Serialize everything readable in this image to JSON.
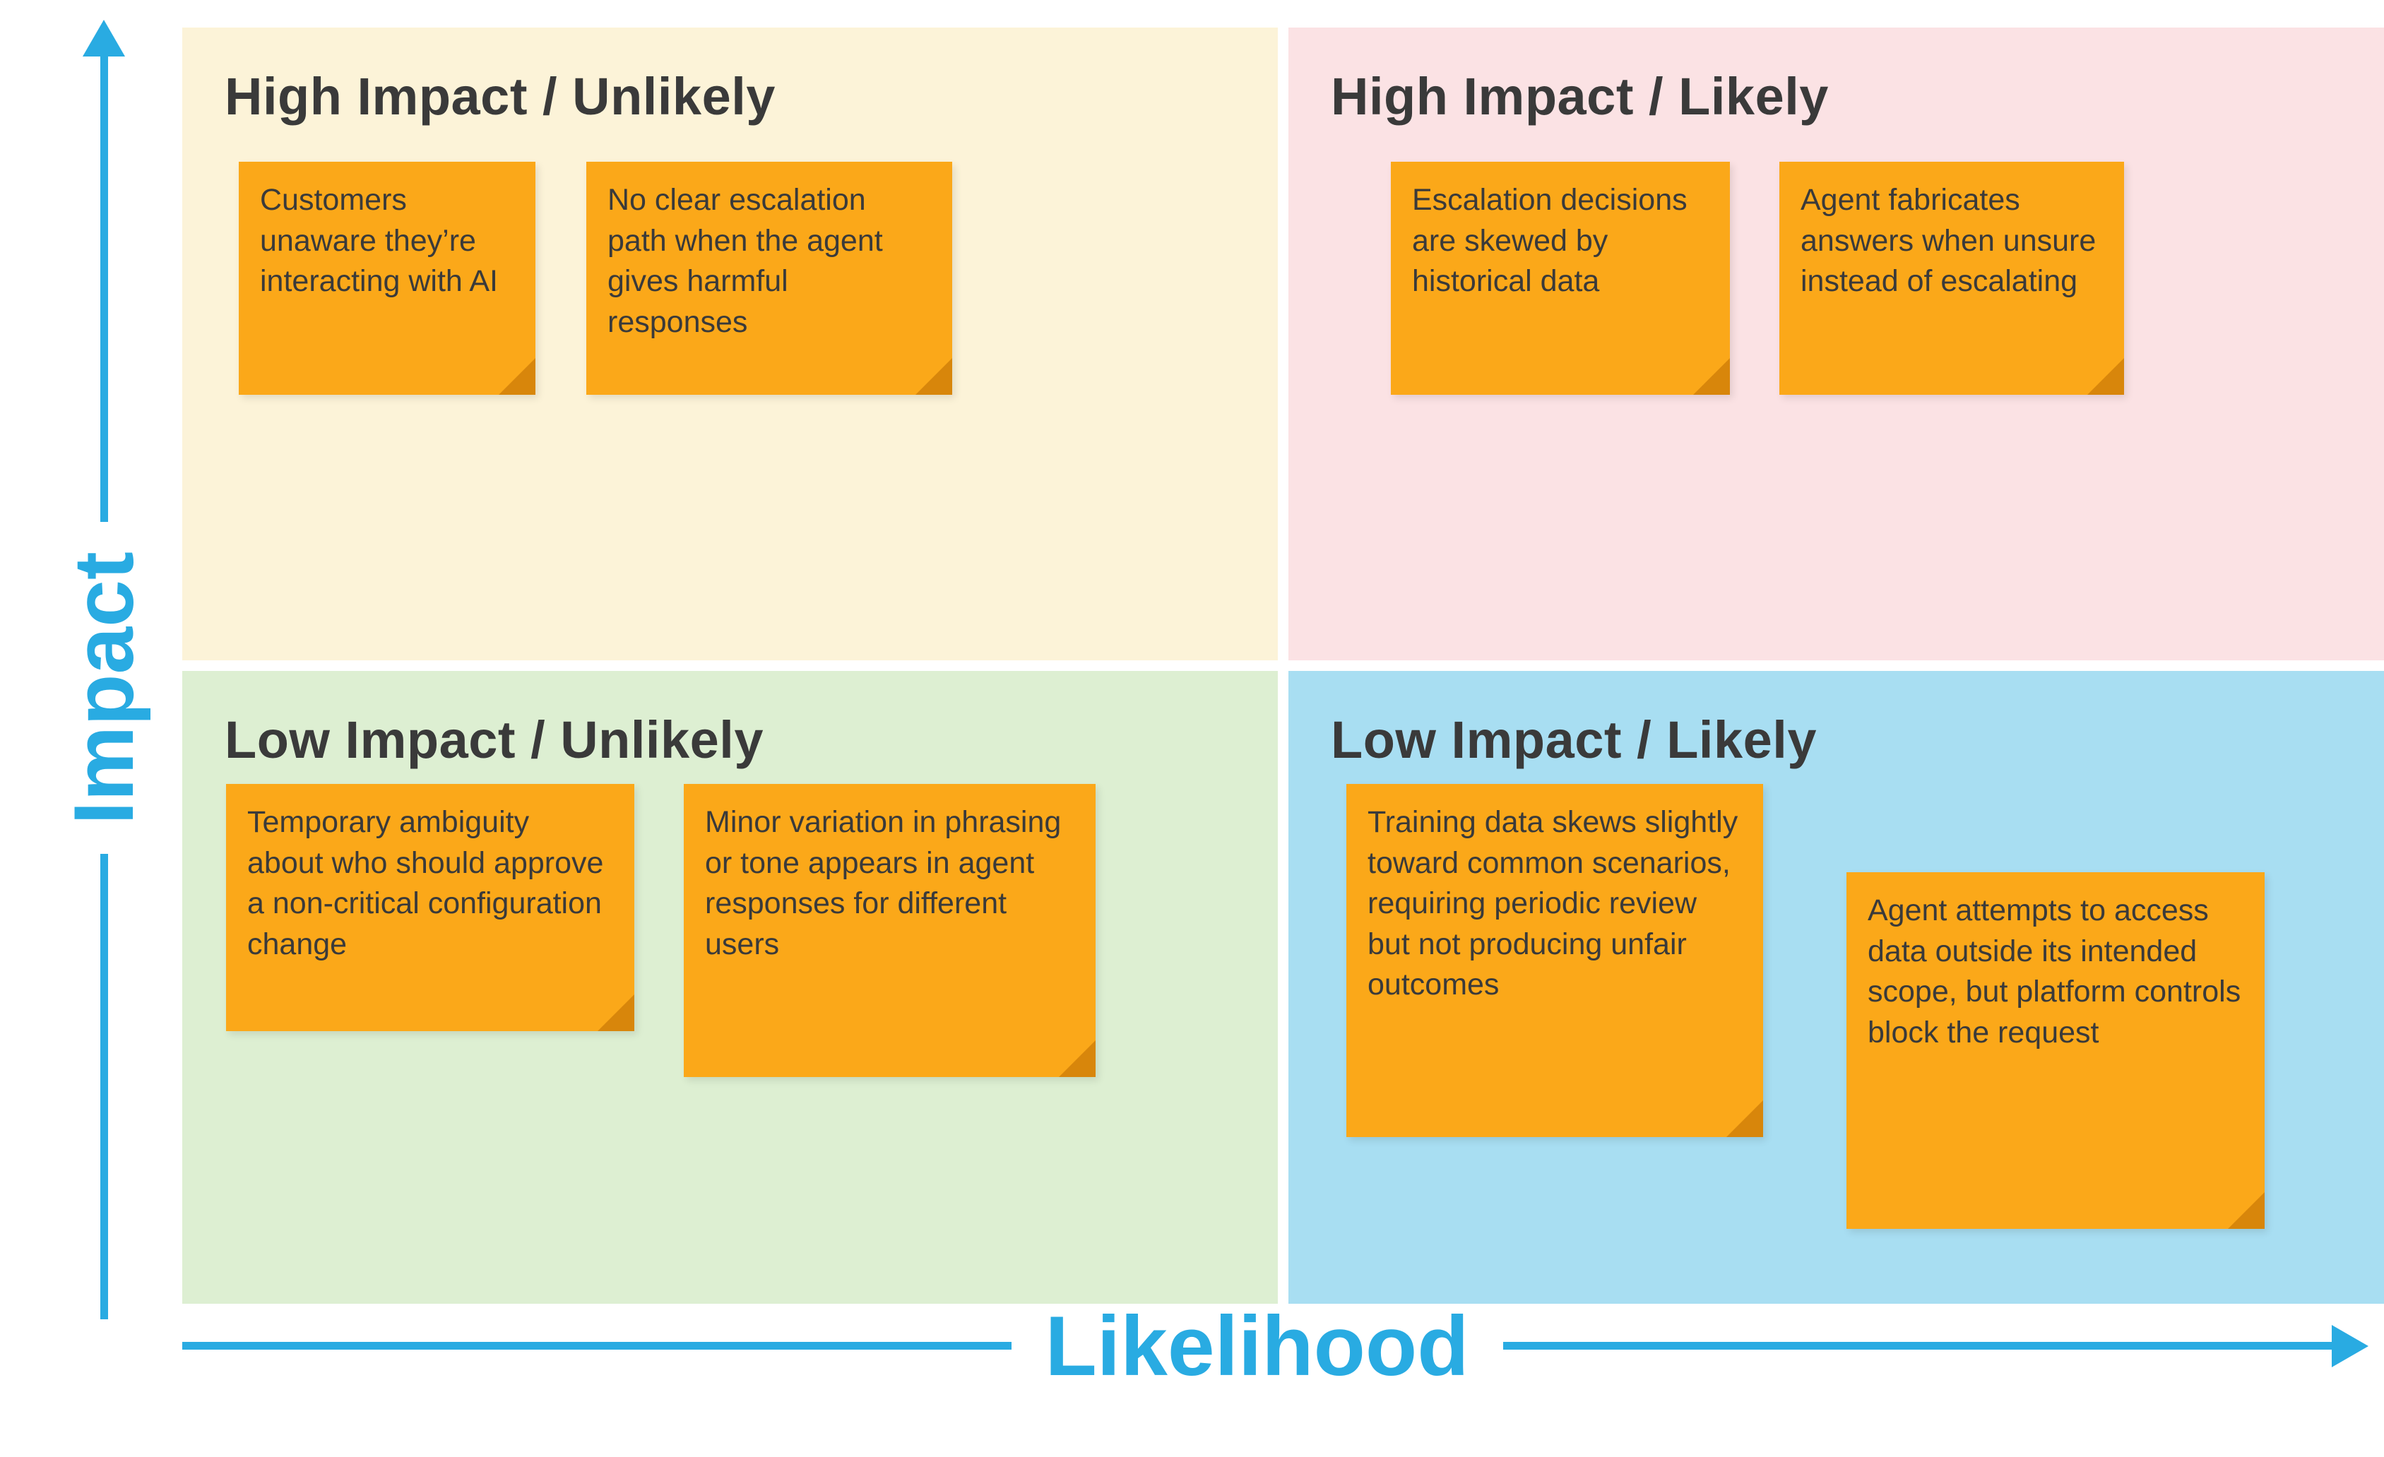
{
  "colors": {
    "axis": "#29ABE2",
    "note": "#FBA819",
    "note_fold": "#D8860B",
    "title_text": "#3A3A3A",
    "note_text": "#3A3A3A",
    "q1_bg": "#FCF3D8",
    "q2_bg": "#FBE2E4",
    "q3_bg": "#DDEFD2",
    "q4_bg": "#A8DEF2"
  },
  "axes": {
    "y_label": "Impact",
    "x_label": "Likelihood"
  },
  "quadrants": [
    {
      "title": "High Impact / Unlikely",
      "notes": [
        "Customers unaware they’re interacting with AI",
        "No clear escalation path when the agent gives harmful responses"
      ]
    },
    {
      "title": "High Impact / Likely",
      "notes": [
        "Escalation decisions are skewed by historical data",
        "Agent fabricates answers when unsure instead of escalating"
      ]
    },
    {
      "title": "Low Impact / Unlikely",
      "notes": [
        "Temporary ambiguity about who should approve a non-critical configuration change",
        "Minor variation in phrasing or tone appears in agent responses for different users"
      ]
    },
    {
      "title": "Low Impact / Likely",
      "notes": [
        "Training data skews slightly toward common scenarios, requiring periodic review but not producing unfair outcomes",
        "Agent attempts to access data outside its intended scope, but platform controls block the request"
      ]
    }
  ]
}
